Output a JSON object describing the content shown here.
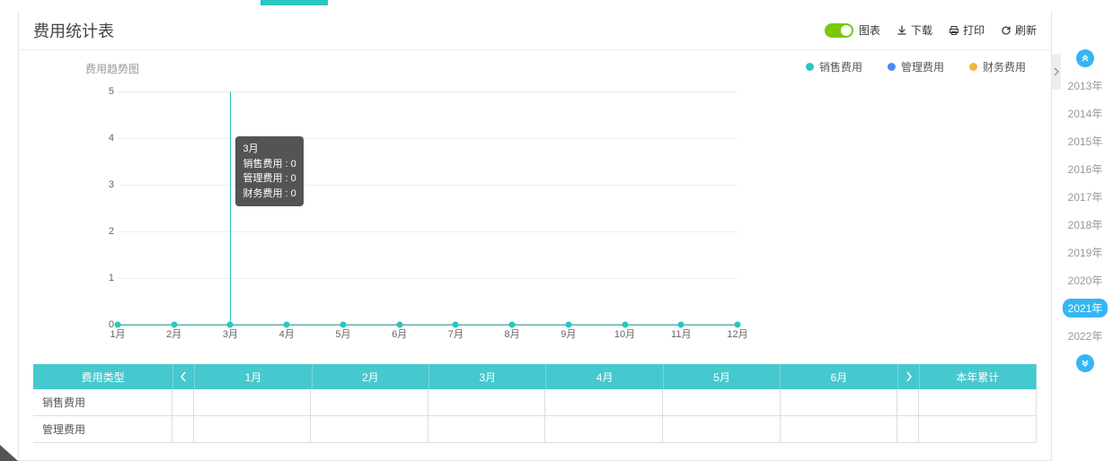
{
  "header": {
    "title": "费用统计表",
    "toggle_label": "图表",
    "download": "下载",
    "print": "打印",
    "refresh": "刷新"
  },
  "chart": {
    "type": "line",
    "subtitle": "费用趋势图",
    "legend": [
      {
        "label": "销售费用",
        "color": "#29c7c0"
      },
      {
        "label": "管理费用",
        "color": "#4a8af4"
      },
      {
        "label": "财务费用",
        "color": "#f0b93b"
      }
    ],
    "y": {
      "min": 0,
      "max": 5,
      "step": 1,
      "labels": [
        "0",
        "1",
        "2",
        "3",
        "4",
        "5"
      ]
    },
    "x_labels": [
      "1月",
      "2月",
      "3月",
      "4月",
      "5月",
      "6月",
      "7月",
      "8月",
      "9月",
      "10月",
      "11月",
      "12月"
    ],
    "series": [
      {
        "name": "销售费用",
        "color": "#29c7c0",
        "values": [
          0,
          0,
          0,
          0,
          0,
          0,
          0,
          0,
          0,
          0,
          0,
          0
        ]
      },
      {
        "name": "管理费用",
        "color": "#4a8af4",
        "values": [
          0,
          0,
          0,
          0,
          0,
          0,
          0,
          0,
          0,
          0,
          0,
          0
        ]
      },
      {
        "name": "财务费用",
        "color": "#f0b93b",
        "values": [
          0,
          0,
          0,
          0,
          0,
          0,
          0,
          0,
          0,
          0,
          0,
          0
        ]
      }
    ],
    "grid_color": "#eeeeee",
    "axis_color": "#cccccc",
    "background_color": "#ffffff",
    "hover_index": 2,
    "tooltip": {
      "title": "3月",
      "lines": [
        {
          "label": "销售费用",
          "value": "0"
        },
        {
          "label": "管理费用",
          "value": "0"
        },
        {
          "label": "财务费用",
          "value": "0"
        }
      ]
    }
  },
  "table": {
    "header_first": "费用类型",
    "header_last": "本年累计",
    "months": [
      "1月",
      "2月",
      "3月",
      "4月",
      "5月",
      "6月"
    ],
    "rows": [
      {
        "label": "销售费用"
      },
      {
        "label": "管理费用"
      }
    ]
  },
  "years": {
    "list": [
      "2013年",
      "2014年",
      "2015年",
      "2016年",
      "2017年",
      "2018年",
      "2019年",
      "2020年",
      "2021年",
      "2022年"
    ],
    "active": "2021年"
  },
  "colors": {
    "accent": "#29c7c0",
    "table_header": "#46c8cf",
    "year_btn": "#35b6f2"
  }
}
